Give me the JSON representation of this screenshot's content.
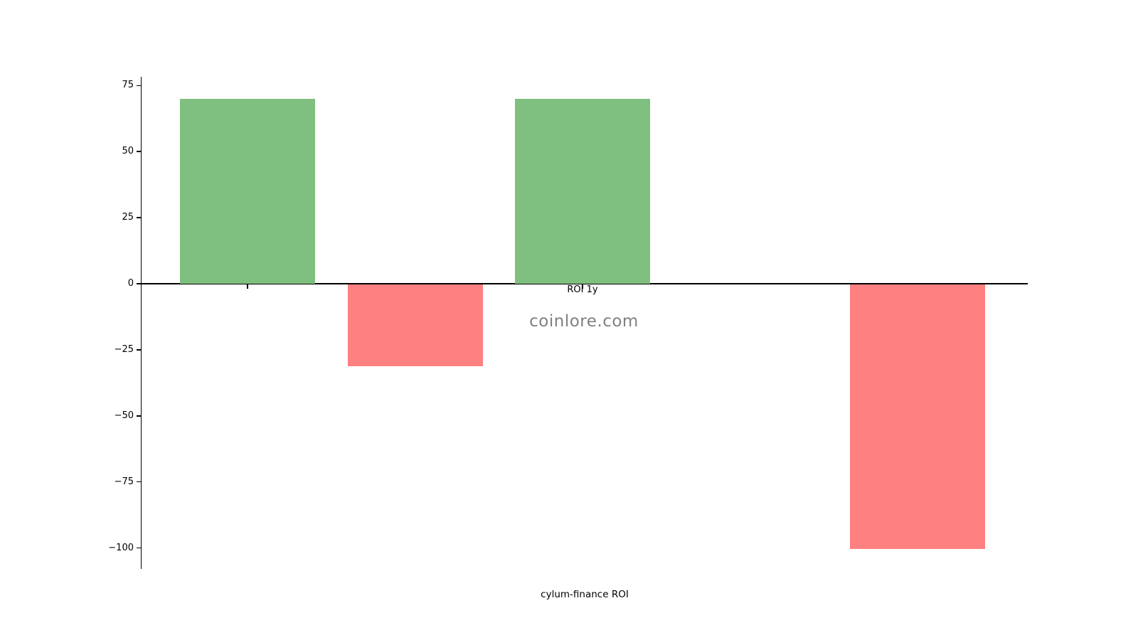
{
  "chart_data": {
    "type": "bar",
    "title": "cylum-finance ROI",
    "watermark": "coinlore.com",
    "categories": [
      "",
      "",
      "ROI 1y",
      "",
      ""
    ],
    "values": [
      70,
      -31,
      70,
      0,
      -100
    ],
    "x_tick_marks": [
      {
        "bar_index": 0,
        "label": ""
      },
      {
        "bar_index": 2,
        "label": "ROI 1y"
      }
    ],
    "y_ticks": [
      {
        "value": 75,
        "label": "75"
      },
      {
        "value": 50,
        "label": "50"
      },
      {
        "value": 25,
        "label": "25"
      },
      {
        "value": 0,
        "label": "0"
      },
      {
        "value": -25,
        "label": "−25"
      },
      {
        "value": -50,
        "label": "−50"
      },
      {
        "value": -75,
        "label": "−75"
      },
      {
        "value": -100,
        "label": "−100"
      }
    ],
    "ylim": [
      -108,
      78
    ],
    "grid": false,
    "legend": "none",
    "colors": {
      "positive_bar": "#7fbf7f",
      "negative_bar": "#ff8080",
      "watermark_text": "#808080",
      "axis": "#000000"
    }
  }
}
